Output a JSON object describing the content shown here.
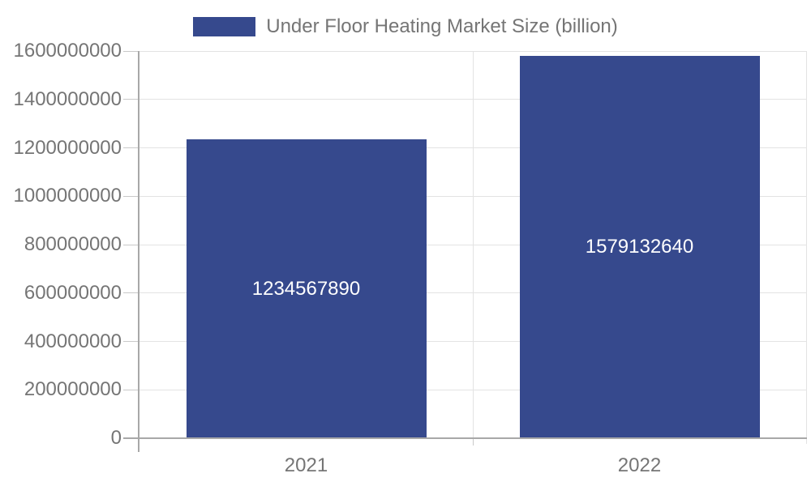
{
  "chart_data": {
    "type": "bar",
    "title": "Under Floor Heating Market Size (billion)",
    "legend": [
      "Under Floor Heating Market Size (billion)"
    ],
    "legend_position": "top-center",
    "categories": [
      "2021",
      "2022"
    ],
    "series": [
      {
        "name": "Under Floor Heating Market Size (billion)",
        "values": [
          1234567890,
          1579132640
        ]
      }
    ],
    "bar_value_labels": [
      "1234567890",
      "1579132640"
    ],
    "xlabel": "",
    "ylabel": "",
    "ylim": [
      0,
      1600000000
    ],
    "yticks": [
      0,
      200000000,
      400000000,
      600000000,
      800000000,
      1000000000,
      1200000000,
      1400000000,
      1600000000
    ],
    "grid": true,
    "colors": {
      "bar": "#36498d",
      "axis_line": "#a8a8a8",
      "gridline": "#e3e3e3",
      "tick": "#c9c9c9",
      "axis_label": "#757575",
      "value_label": "#ffffff",
      "background": "#ffffff"
    }
  }
}
